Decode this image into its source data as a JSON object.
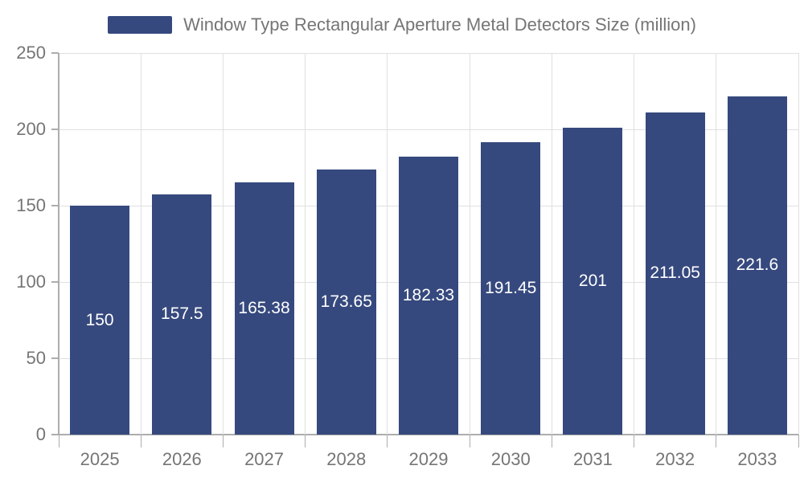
{
  "colors": {
    "bar": "#36497e",
    "grid": "#e0e0e0",
    "axis": "#adadad",
    "tick_label": "#757575",
    "value_label": "#ffffff",
    "background": "#ffffff"
  },
  "legend": {
    "label": "Window Type Rectangular Aperture Metal Detectors Size (million)"
  },
  "chart_data": {
    "type": "bar",
    "title": "Window Type Rectangular Aperture Metal Detectors Size (million)",
    "categories": [
      "2025",
      "2026",
      "2027",
      "2028",
      "2029",
      "2030",
      "2031",
      "2032",
      "2033"
    ],
    "values": [
      150,
      157.5,
      165.38,
      173.65,
      182.33,
      191.45,
      201,
      211.05,
      221.6
    ],
    "value_labels": [
      "150",
      "157.5",
      "165.38",
      "173.65",
      "182.33",
      "191.45",
      "201",
      "211.05",
      "221.6"
    ],
    "xlabel": "",
    "ylabel": "",
    "ylim": [
      0,
      250
    ],
    "yticks": [
      0,
      50,
      100,
      150,
      200,
      250
    ],
    "grid": true,
    "legend_position": "top",
    "value_label_position": "center-of-bar"
  }
}
